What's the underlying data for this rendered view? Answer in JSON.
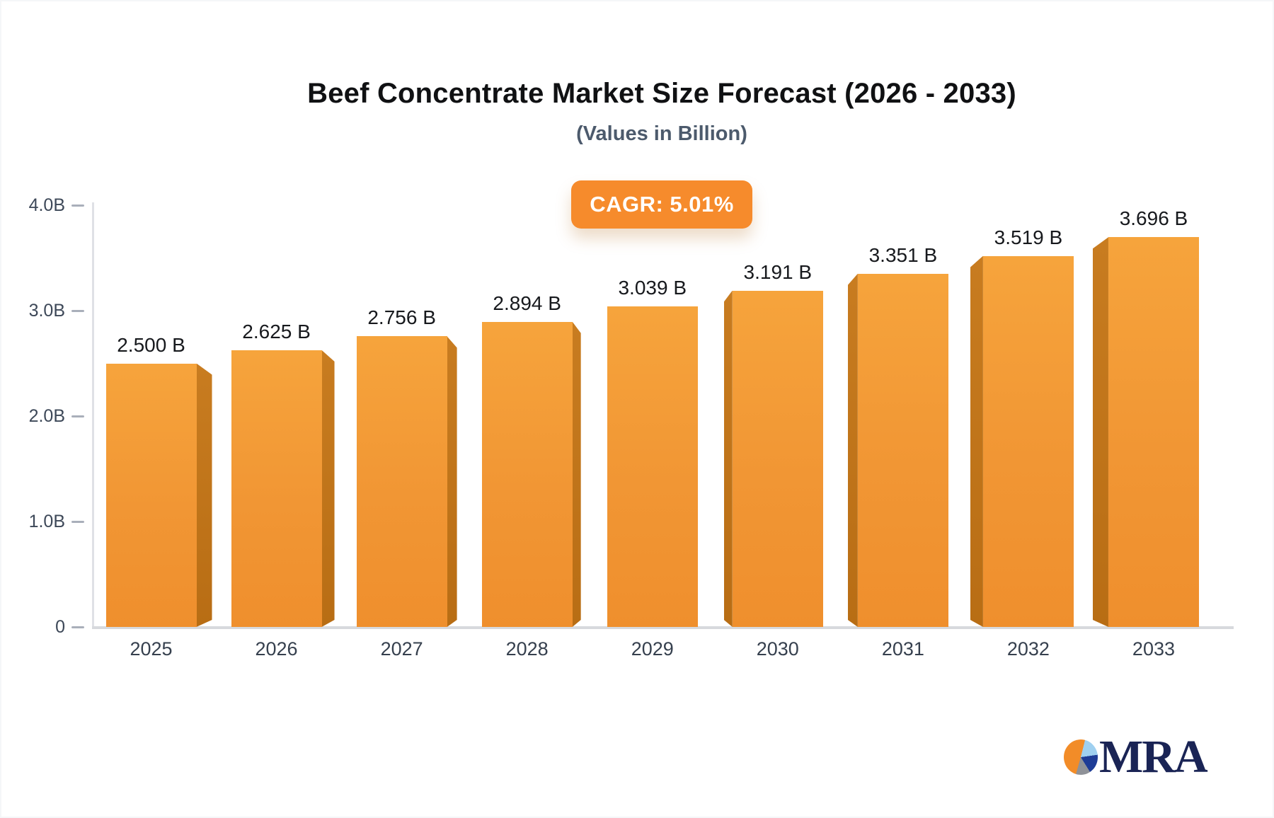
{
  "header": {
    "title": "Beef Concentrate Market Size Forecast (2026 - 2033)",
    "subtitle": "(Values in Billion)",
    "badge_label": "CAGR: 5.01%"
  },
  "logo": {
    "text": "MRA",
    "icon": "pie-chart-icon"
  },
  "chart_data": {
    "type": "bar",
    "title": "Beef Concentrate Market Size Forecast (2026 - 2033)",
    "subtitle": "(Values in Billion)",
    "annotation": "CAGR: 5.01%",
    "categories": [
      "2025",
      "2026",
      "2027",
      "2028",
      "2029",
      "2030",
      "2031",
      "2032",
      "2033"
    ],
    "values": [
      2.5,
      2.625,
      2.756,
      2.894,
      3.039,
      3.191,
      3.351,
      3.519,
      3.696
    ],
    "value_labels": [
      "2.500 B",
      "2.625 B",
      "2.756 B",
      "2.894 B",
      "3.039 B",
      "3.191 B",
      "3.351 B",
      "3.519 B",
      "3.696 B"
    ],
    "xlabel": "",
    "ylabel": "",
    "ylim": [
      0,
      4
    ],
    "y_ticks": [
      {
        "value": 4,
        "label": "4.0B"
      },
      {
        "value": 3,
        "label": "3.0B"
      },
      {
        "value": 2,
        "label": "2.0B"
      },
      {
        "value": 1,
        "label": "1.0B"
      },
      {
        "value": 0,
        "label": "0"
      }
    ],
    "grid": false,
    "legend_position": "none",
    "colors": {
      "bar_front_top": "#f6a43c",
      "bar_front_bottom": "#ef8f2d",
      "bar_side": "#bc7218",
      "badge_bg": "#f68b2c",
      "badge_text": "#ffffff",
      "axis_line": "#dcdee3",
      "tick_text": "#3d4858",
      "category_text": "#36404e",
      "value_text": "#17191d",
      "title_text": "#101113",
      "subtitle_text": "#4c5a6c",
      "logo_navy": "#1a2455",
      "logo_orange": "#f28c28"
    }
  }
}
